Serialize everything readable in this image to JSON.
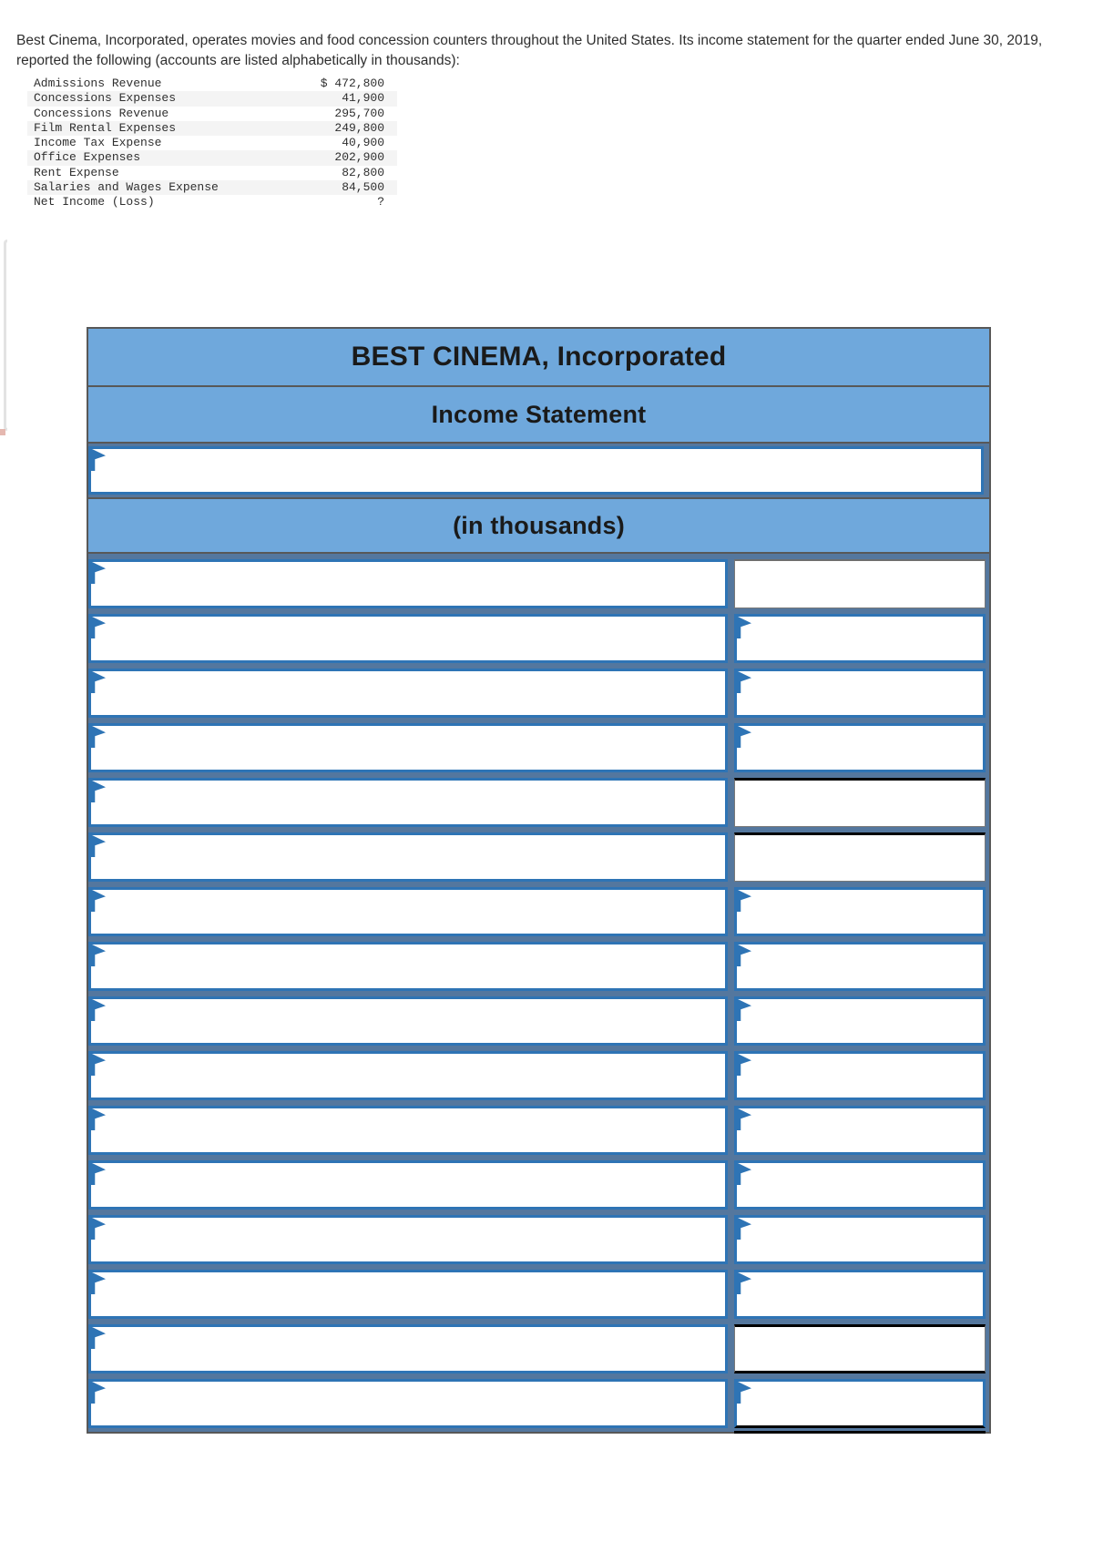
{
  "intro": {
    "text": "Best Cinema, Incorporated, operates movies and food concession counters throughout the United States. Its income statement for the quarter ended June 30, 2019, reported the following (accounts are listed alphabetically in thousands):"
  },
  "accounts": {
    "rows": [
      {
        "name": "Admissions Revenue",
        "value": "$ 472,800"
      },
      {
        "name": "Concessions Expenses",
        "value": "41,900"
      },
      {
        "name": "Concessions Revenue",
        "value": "295,700"
      },
      {
        "name": "Film Rental Expenses",
        "value": "249,800"
      },
      {
        "name": "Income Tax Expense",
        "value": "40,900"
      },
      {
        "name": "Office Expenses",
        "value": "202,900"
      },
      {
        "name": "Rent Expense",
        "value": "82,800"
      },
      {
        "name": "Salaries and Wages Expense",
        "value": "84,500"
      },
      {
        "name": "Net Income (Loss)",
        "value": "?"
      }
    ]
  },
  "statement": {
    "title": "BEST CINEMA, Incorporated",
    "subtitle": "Income Statement",
    "units": "(in thousands)",
    "period_input": {
      "value": "",
      "placeholder": ""
    },
    "body_rows": [
      {
        "left": "input",
        "right": "plain"
      },
      {
        "left": "input",
        "right": "input"
      },
      {
        "left": "input",
        "right": "input"
      },
      {
        "left": "input",
        "right": "input"
      },
      {
        "left": "input",
        "right": "rule-top"
      },
      {
        "left": "input",
        "right": "rule-top"
      },
      {
        "left": "input",
        "right": "input"
      },
      {
        "left": "input",
        "right": "input"
      },
      {
        "left": "input",
        "right": "input"
      },
      {
        "left": "input",
        "right": "input"
      },
      {
        "left": "input",
        "right": "input"
      },
      {
        "left": "input",
        "right": "input"
      },
      {
        "left": "input",
        "right": "input"
      },
      {
        "left": "input",
        "right": "input"
      },
      {
        "left": "input",
        "right": "rule-tb"
      },
      {
        "left": "input",
        "right": "input-final"
      }
    ]
  },
  "icons": {
    "input_flag": "blue input-cell flag marker"
  },
  "colors": {
    "header_blue": "#6FA8DC",
    "table_gap_blue": "#54779E",
    "input_border_blue": "#2E74B5",
    "plain_border_gray": "#787878",
    "rule_black": "#000000",
    "shaded_row_gray": "#f4f4f4"
  }
}
